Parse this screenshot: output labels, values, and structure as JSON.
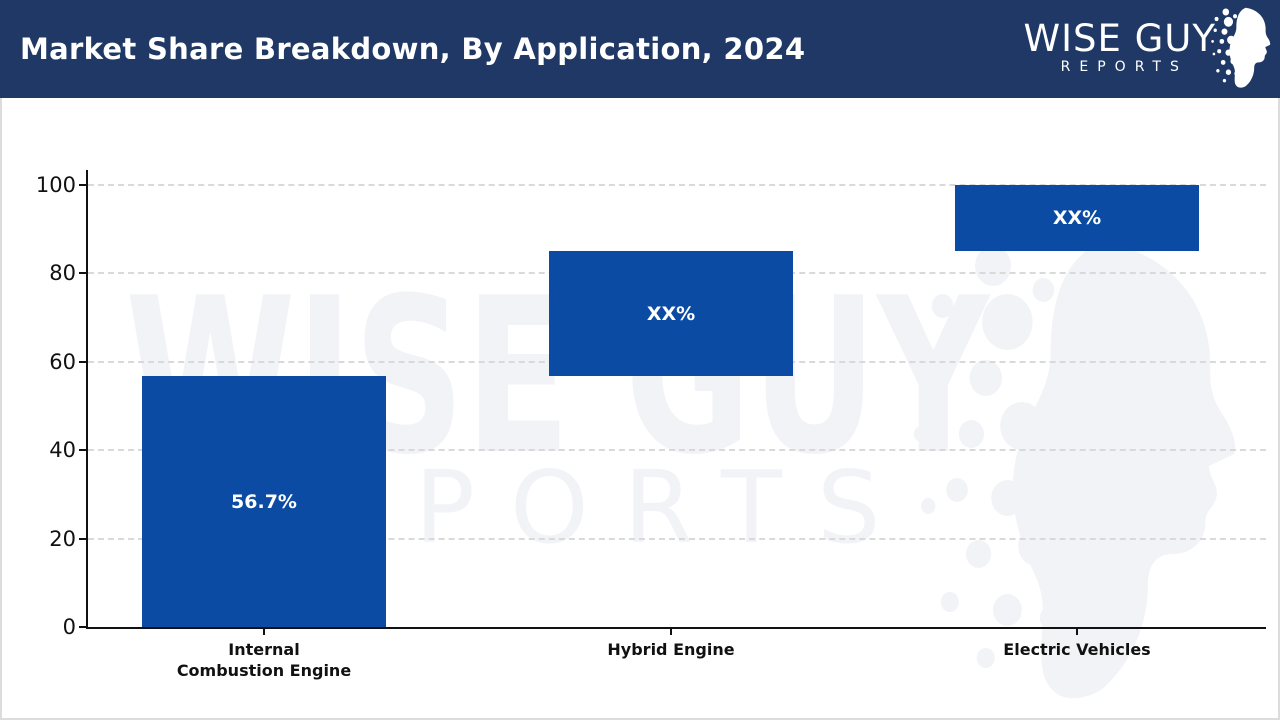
{
  "header": {
    "title": "Market Share Breakdown, By Application, 2024",
    "background": "#1f3865"
  },
  "logo": {
    "name": "WISE GUY",
    "subtitle": "REPORTS"
  },
  "watermark": {
    "line1": "WISE GUY",
    "line2": "REPORTS"
  },
  "chart_data": {
    "type": "bar",
    "subtype": "waterfall-stacked-percent",
    "title": "Market Share Breakdown, By Application, 2024",
    "categories": [
      "Internal Combustion Engine",
      "Hybrid Engine",
      "Electric Vehicles"
    ],
    "category_label_lines": [
      [
        "Internal",
        "Combustion Engine"
      ],
      [
        "Hybrid Engine"
      ],
      [
        "Electric Vehicles"
      ]
    ],
    "segments": [
      {
        "category": "Internal Combustion Engine",
        "from": 0,
        "to": 56.7,
        "label": "56.7%"
      },
      {
        "category": "Hybrid Engine",
        "from": 56.7,
        "to": 85,
        "label": "XX%"
      },
      {
        "category": "Electric Vehicles",
        "from": 85,
        "to": 100,
        "label": "XX%"
      }
    ],
    "xlabel": "",
    "ylabel": "",
    "ylim": [
      0,
      100
    ],
    "yticks": [
      0,
      20,
      40,
      60,
      80,
      100
    ],
    "grid": "horizontal-dashed",
    "legend": "none",
    "bar_color": "#0b4ba3",
    "bar_label_color": "#ffffff",
    "axis_color": "#111111",
    "gridline_color": "#d9d9d9"
  }
}
